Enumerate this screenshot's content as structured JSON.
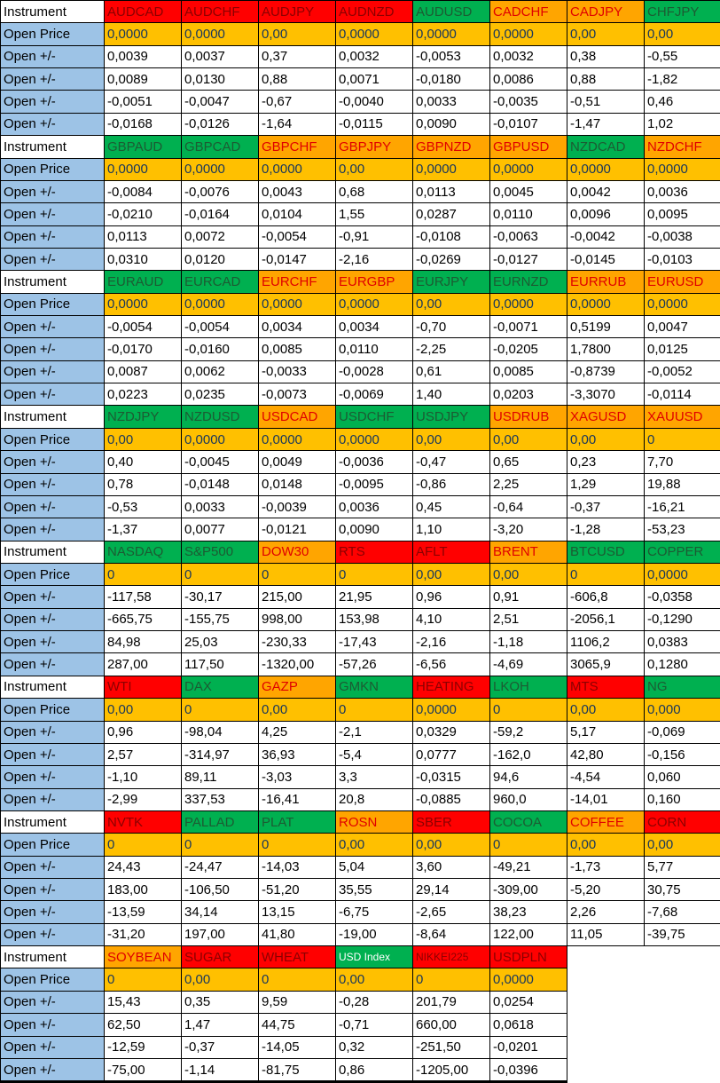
{
  "table": {
    "row_labels": {
      "instrument": "Instrument",
      "open_price": "Open Price",
      "open_change": "Open +/-"
    },
    "colors": {
      "red": "#FF0000",
      "green": "#00B050",
      "orange": "#FFA500",
      "open_price_bg": "#FFC000",
      "open_price_text": "#17365D",
      "label_bg": "#9DC3E6",
      "label_text": "#000000",
      "instrument_text": {
        "red": "#8B0000",
        "green": "#1C5B33",
        "orange": "#E00000"
      }
    },
    "blocks": [
      {
        "instruments": [
          {
            "name": "AUDCAD",
            "color": "red"
          },
          {
            "name": "AUDCHF",
            "color": "red"
          },
          {
            "name": "AUDJPY",
            "color": "red"
          },
          {
            "name": "AUDNZD",
            "color": "red"
          },
          {
            "name": "AUDUSD",
            "color": "green"
          },
          {
            "name": "CADCHF",
            "color": "orange"
          },
          {
            "name": "CADJPY",
            "color": "orange"
          },
          {
            "name": "CHFJPY",
            "color": "green"
          }
        ],
        "open_prices": [
          "0,0000",
          "0,0000",
          "0,00",
          "0,0000",
          "0,0000",
          "0,0000",
          "0,00",
          "0,00"
        ],
        "rows": [
          [
            "0,0039",
            "0,0037",
            "0,37",
            "0,0032",
            "-0,0053",
            "0,0032",
            "0,38",
            "-0,55"
          ],
          [
            "0,0089",
            "0,0130",
            "0,88",
            "0,0071",
            "-0,0180",
            "0,0086",
            "0,88",
            "-1,82"
          ],
          [
            "-0,0051",
            "-0,0047",
            "-0,67",
            "-0,0040",
            "0,0033",
            "-0,0035",
            "-0,51",
            "0,46"
          ],
          [
            "-0,0168",
            "-0,0126",
            "-1,64",
            "-0,0115",
            "0,0090",
            "-0,0107",
            "-1,47",
            "1,02"
          ]
        ]
      },
      {
        "instruments": [
          {
            "name": "GBPAUD",
            "color": "green"
          },
          {
            "name": "GBPCAD",
            "color": "green"
          },
          {
            "name": "GBPCHF",
            "color": "orange"
          },
          {
            "name": "GBPJPY",
            "color": "orange"
          },
          {
            "name": "GBPNZD",
            "color": "orange"
          },
          {
            "name": "GBPUSD",
            "color": "orange"
          },
          {
            "name": "NZDCAD",
            "color": "green"
          },
          {
            "name": "NZDCHF",
            "color": "orange"
          }
        ],
        "open_prices": [
          "0,0000",
          "0,0000",
          "0,0000",
          "0,00",
          "0,0000",
          "0,0000",
          "0,0000",
          "0,0000"
        ],
        "rows": [
          [
            "-0,0084",
            "-0,0076",
            "0,0043",
            "0,68",
            "0,0113",
            "0,0045",
            "0,0042",
            "0,0036"
          ],
          [
            "-0,0210",
            "-0,0164",
            "0,0104",
            "1,55",
            "0,0287",
            "0,0110",
            "0,0096",
            "0,0095"
          ],
          [
            "0,0113",
            "0,0072",
            "-0,0054",
            "-0,91",
            "-0,0108",
            "-0,0063",
            "-0,0042",
            "-0,0038"
          ],
          [
            "0,0310",
            "0,0120",
            "-0,0147",
            "-2,16",
            "-0,0269",
            "-0,0127",
            "-0,0145",
            "-0,0103"
          ]
        ]
      },
      {
        "instruments": [
          {
            "name": "EURAUD",
            "color": "green"
          },
          {
            "name": "EURCAD",
            "color": "green"
          },
          {
            "name": "EURCHF",
            "color": "orange"
          },
          {
            "name": "EURGBP",
            "color": "orange"
          },
          {
            "name": "EURJPY",
            "color": "green"
          },
          {
            "name": "EURNZD",
            "color": "green"
          },
          {
            "name": "EURRUB",
            "color": "orange"
          },
          {
            "name": "EURUSD",
            "color": "orange"
          }
        ],
        "open_prices": [
          "0,0000",
          "0,0000",
          "0,0000",
          "0,0000",
          "0,00",
          "0,0000",
          "0,0000",
          "0,0000"
        ],
        "rows": [
          [
            "-0,0054",
            "-0,0054",
            "0,0034",
            "0,0034",
            "-0,70",
            "-0,0071",
            "0,5199",
            "0,0047"
          ],
          [
            "-0,0170",
            "-0,0160",
            "0,0085",
            "0,0110",
            "-2,25",
            "-0,0205",
            "1,7800",
            "0,0125"
          ],
          [
            "0,0087",
            "0,0062",
            "-0,0033",
            "-0,0028",
            "0,61",
            "0,0085",
            "-0,8739",
            "-0,0052"
          ],
          [
            "0,0223",
            "0,0235",
            "-0,0073",
            "-0,0069",
            "1,40",
            "0,0203",
            "-3,3070",
            "-0,0114"
          ]
        ]
      },
      {
        "instruments": [
          {
            "name": "NZDJPY",
            "color": "green"
          },
          {
            "name": "NZDUSD",
            "color": "green"
          },
          {
            "name": "USDCAD",
            "color": "orange"
          },
          {
            "name": "USDCHF",
            "color": "green"
          },
          {
            "name": "USDJPY",
            "color": "green"
          },
          {
            "name": "USDRUB",
            "color": "orange"
          },
          {
            "name": "XAGUSD",
            "color": "orange"
          },
          {
            "name": "XAUUSD",
            "color": "orange"
          }
        ],
        "open_prices": [
          "0,00",
          "0,0000",
          "0,0000",
          "0,0000",
          "0,00",
          "0,00",
          "0,00",
          "0"
        ],
        "rows": [
          [
            "0,40",
            "-0,0045",
            "0,0049",
            "-0,0036",
            "-0,47",
            "0,65",
            "0,23",
            "7,70"
          ],
          [
            "0,78",
            "-0,0148",
            "0,0148",
            "-0,0095",
            "-0,86",
            "2,25",
            "1,29",
            "19,88"
          ],
          [
            "-0,53",
            "0,0033",
            "-0,0039",
            "0,0036",
            "0,45",
            "-0,64",
            "-0,37",
            "-16,21"
          ],
          [
            "-1,37",
            "0,0077",
            "-0,0121",
            "0,0090",
            "1,10",
            "-3,20",
            "-1,28",
            "-53,23"
          ]
        ]
      },
      {
        "instruments": [
          {
            "name": "NASDAQ",
            "color": "green"
          },
          {
            "name": "S&P500",
            "color": "green"
          },
          {
            "name": "DOW30",
            "color": "orange"
          },
          {
            "name": "RTS",
            "color": "red"
          },
          {
            "name": "AFLT",
            "color": "red"
          },
          {
            "name": "BRENT",
            "color": "orange"
          },
          {
            "name": "BTCUSD",
            "color": "green"
          },
          {
            "name": "COPPER",
            "color": "green"
          }
        ],
        "open_prices": [
          "0",
          "0",
          "0",
          "0",
          "0,00",
          "0,00",
          "0",
          "0,0000"
        ],
        "rows": [
          [
            "-117,58",
            "-30,17",
            "215,00",
            "21,95",
            "0,96",
            "0,91",
            "-606,8",
            "-0,0358"
          ],
          [
            "-665,75",
            "-155,75",
            "998,00",
            "153,98",
            "4,10",
            "2,51",
            "-2056,1",
            "-0,1290"
          ],
          [
            "84,98",
            "25,03",
            "-230,33",
            "-17,43",
            "-2,16",
            "-1,18",
            "1106,2",
            "0,0383"
          ],
          [
            "287,00",
            "117,50",
            "-1320,00",
            "-57,26",
            "-6,56",
            "-4,69",
            "3065,9",
            "0,1280"
          ]
        ]
      },
      {
        "instruments": [
          {
            "name": "WTI",
            "color": "red"
          },
          {
            "name": "DAX",
            "color": "green"
          },
          {
            "name": "GAZP",
            "color": "orange"
          },
          {
            "name": "GMKN",
            "color": "green"
          },
          {
            "name": "HEATING",
            "color": "red"
          },
          {
            "name": "LKOH",
            "color": "green"
          },
          {
            "name": "MTS",
            "color": "red"
          },
          {
            "name": "NG",
            "color": "green"
          }
        ],
        "open_prices": [
          "0,00",
          "0",
          "0,00",
          "0",
          "0,0000",
          "0",
          "0,00",
          "0,000"
        ],
        "rows": [
          [
            "0,96",
            "-98,04",
            "4,25",
            "-2,1",
            "0,0329",
            "-59,2",
            "5,17",
            "-0,069"
          ],
          [
            "2,57",
            "-314,97",
            "36,93",
            "-5,4",
            "0,0777",
            "-162,0",
            "42,80",
            "-0,156"
          ],
          [
            "-1,10",
            "89,11",
            "-3,03",
            "3,3",
            "-0,0315",
            "94,6",
            "-4,54",
            "0,060"
          ],
          [
            "-2,99",
            "337,53",
            "-16,41",
            "20,8",
            "-0,0885",
            "960,0",
            "-14,01",
            "0,160"
          ]
        ]
      },
      {
        "instruments": [
          {
            "name": "NVTK",
            "color": "red"
          },
          {
            "name": "PALLAD",
            "color": "green"
          },
          {
            "name": "PLAT",
            "color": "green"
          },
          {
            "name": "ROSN",
            "color": "orange"
          },
          {
            "name": "SBER",
            "color": "red"
          },
          {
            "name": "COCOA",
            "color": "green"
          },
          {
            "name": "COFFEE",
            "color": "orange"
          },
          {
            "name": "CORN",
            "color": "red"
          }
        ],
        "open_prices": [
          "0",
          "0",
          "0",
          "0,00",
          "0,00",
          "0",
          "0,00",
          "0,00"
        ],
        "rows": [
          [
            "24,43",
            "-24,47",
            "-14,03",
            "5,04",
            "3,60",
            "-49,21",
            "-1,73",
            "5,77"
          ],
          [
            "183,00",
            "-106,50",
            "-51,20",
            "35,55",
            "29,14",
            "-309,00",
            "-5,20",
            "30,75"
          ],
          [
            "-13,59",
            "34,14",
            "13,15",
            "-6,75",
            "-2,65",
            "38,23",
            "2,26",
            "-7,68"
          ],
          [
            "-31,20",
            "197,00",
            "41,80",
            "-19,00",
            "-8,64",
            "122,00",
            "11,05",
            "-39,75"
          ]
        ]
      },
      {
        "instruments": [
          {
            "name": "SOYBEAN",
            "color": "orange"
          },
          {
            "name": "SUGAR",
            "color": "red"
          },
          {
            "name": "WHEAT",
            "color": "red"
          },
          {
            "name": "USD Index",
            "color": "green",
            "text_color": "#FFFFFF",
            "small": true
          },
          {
            "name": "NIKKEI225",
            "color": "red",
            "small": true
          },
          {
            "name": "USDPLN",
            "color": "red"
          }
        ],
        "open_prices": [
          "0",
          "0,00",
          "0",
          "0,00",
          "0",
          "0,0000"
        ],
        "rows": [
          [
            "15,43",
            "0,35",
            "9,59",
            "-0,28",
            "201,79",
            "0,0254"
          ],
          [
            "62,50",
            "1,47",
            "44,75",
            "-0,71",
            "660,00",
            "0,0618"
          ],
          [
            "-12,59",
            "-0,37",
            "-14,05",
            "0,32",
            "-251,50",
            "-0,0201"
          ],
          [
            "-75,00",
            "-1,14",
            "-81,75",
            "0,86",
            "-1205,00",
            "-0,0396"
          ]
        ]
      }
    ]
  }
}
